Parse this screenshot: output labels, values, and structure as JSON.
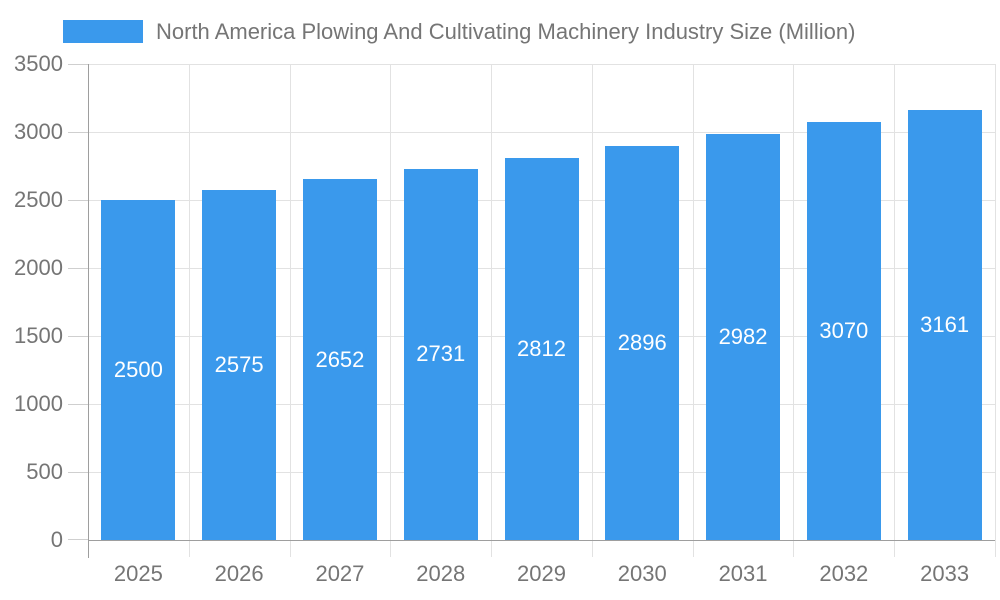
{
  "chart_data": {
    "type": "bar",
    "title": "North America Plowing And Cultivating Machinery Industry Size (Million)",
    "legend": {
      "position": "top",
      "label": "North America Plowing And Cultivating Machinery Industry Size (Million)"
    },
    "categories": [
      "2025",
      "2026",
      "2027",
      "2028",
      "2029",
      "2030",
      "2031",
      "2032",
      "2033"
    ],
    "values": [
      2500,
      2575,
      2652,
      2731,
      2812,
      2896,
      2982,
      3070,
      3161
    ],
    "bar_value_labels": [
      "2500",
      "2575",
      "2652",
      "2731",
      "2812",
      "2896",
      "2982",
      "3070",
      "3161"
    ],
    "xlabel": "",
    "ylabel": "",
    "ylim": [
      0,
      3500
    ],
    "yticks": [
      0,
      500,
      1000,
      1500,
      2000,
      2500,
      3000,
      3500
    ],
    "grid": true,
    "colors": {
      "bar": "#3A99EC",
      "bar_label": "#FFFFFF",
      "axis_text": "#757575",
      "gridline": "#E2E2E2",
      "axis_line": "#9E9E9E",
      "tick": "#CFCFCF",
      "background": "#FFFFFF"
    }
  }
}
